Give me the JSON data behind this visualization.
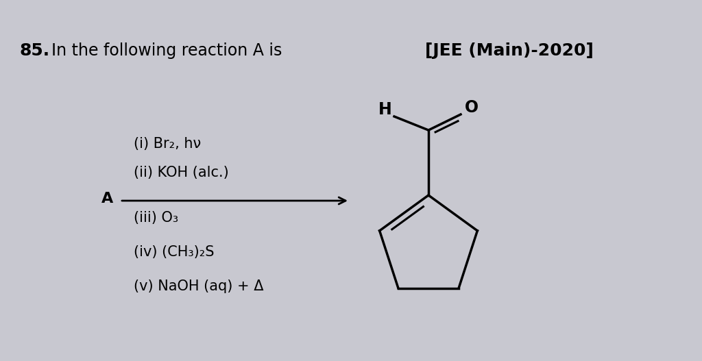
{
  "title_number": "85.",
  "title_text": "In the following reaction A is",
  "title_bracket": "[JEE (Main)-2020]",
  "bg_color": "#c8c8d0",
  "text_color": "#000000",
  "reaction_steps": [
    "(i) Br₂, hν",
    "(ii) KOH (alc.)",
    "(iii) O₃",
    "(iv) (CH₃)₂S",
    "(v) NaOH (aq) + Δ"
  ],
  "figsize": [
    10.24,
    5.27
  ],
  "dpi": 100
}
